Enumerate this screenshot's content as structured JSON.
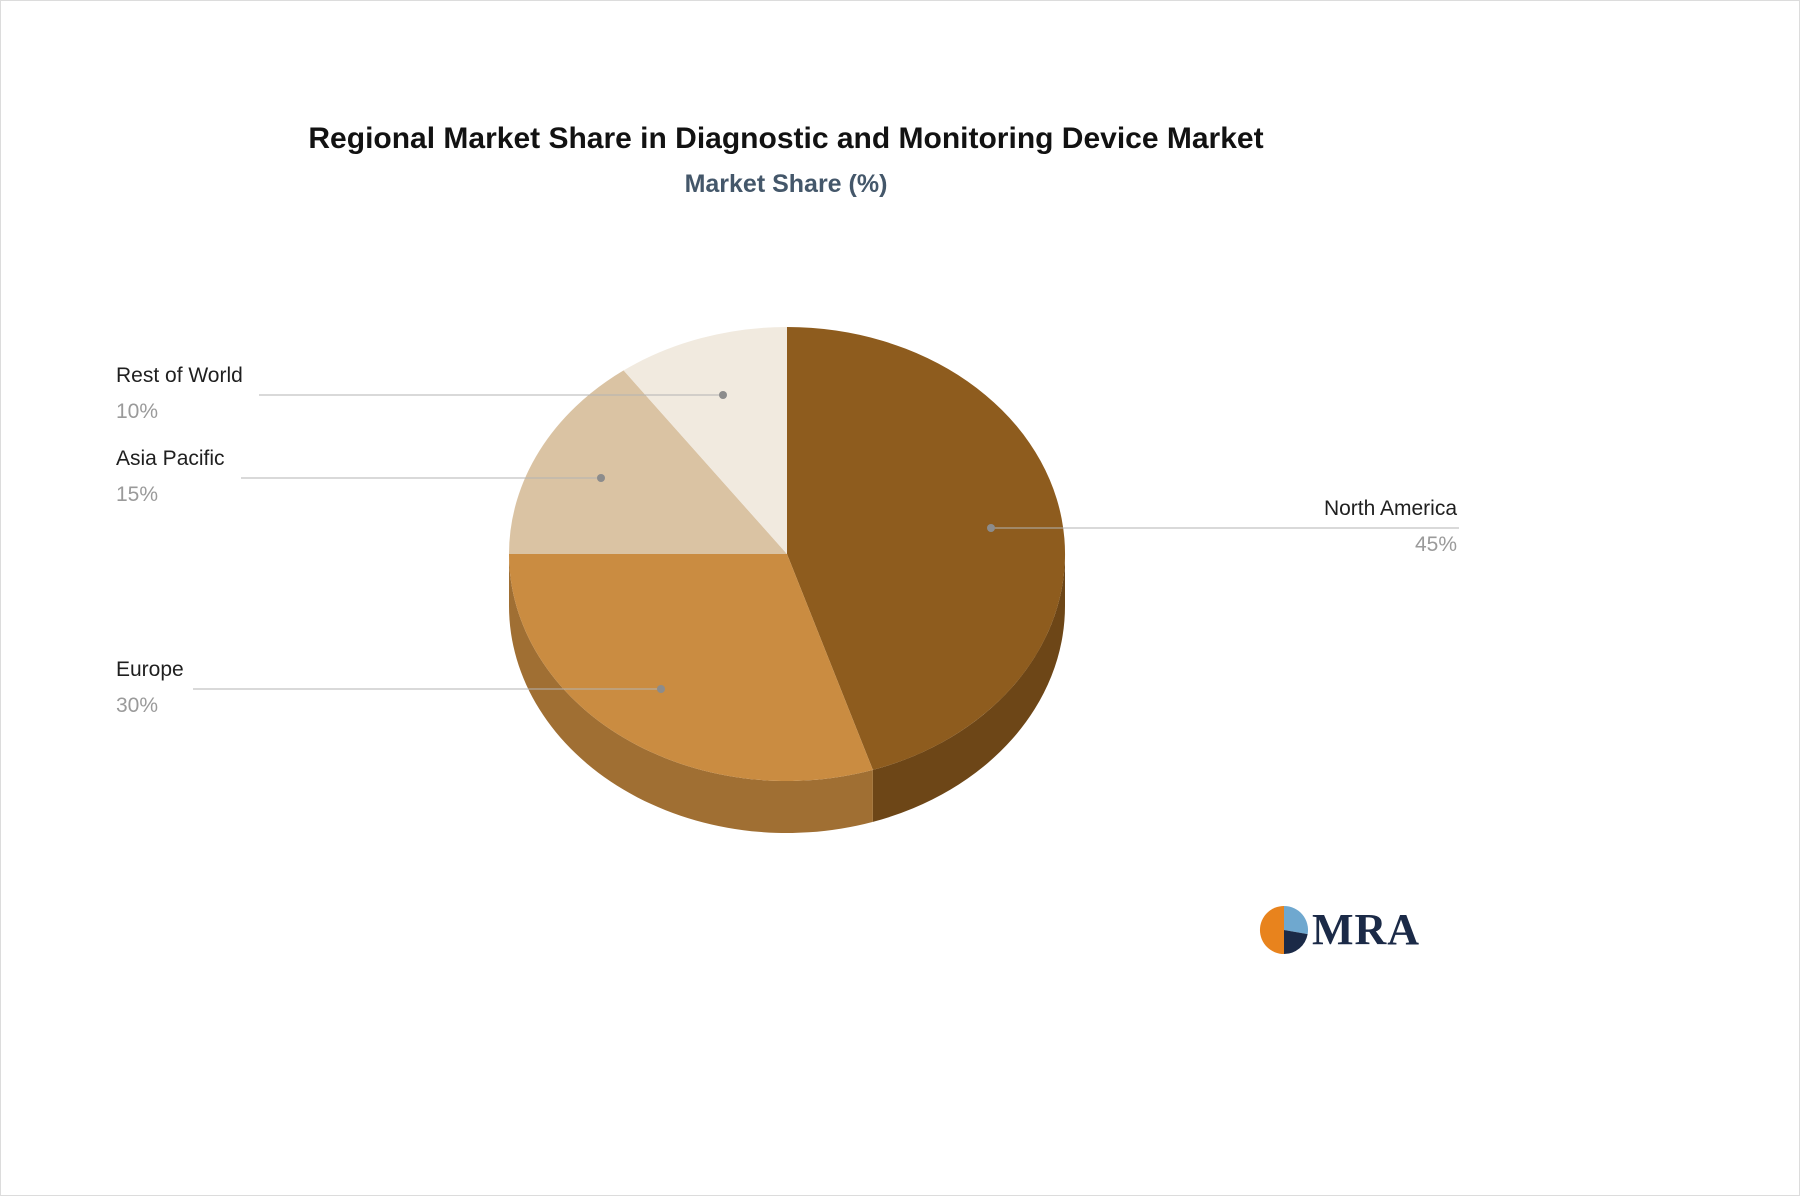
{
  "title": "Regional Market Share in Diagnostic and Monitoring Device Market",
  "subtitle": "Market Share (%)",
  "chart_data": {
    "type": "pie",
    "title": "Regional Market Share in Diagnostic and Monitoring Device Market",
    "subtitle": "Market Share (%)",
    "unit": "%",
    "style": "3d-pie",
    "legend_position": "none",
    "labels_on": true,
    "start_angle_deg": -90,
    "direction": "clockwise",
    "categories": [
      "North America",
      "Europe",
      "Asia Pacific",
      "Rest of World"
    ],
    "values": [
      45,
      30,
      15,
      10
    ],
    "slices": [
      {
        "label": "North America",
        "value": 45,
        "pct_label": "45%",
        "color": "#8e5c1e",
        "side_color": "#6d4617"
      },
      {
        "label": "Europe",
        "value": 30,
        "pct_label": "30%",
        "color": "#ca8c41",
        "side_color": "#a06f33"
      },
      {
        "label": "Asia Pacific",
        "value": 15,
        "pct_label": "15%",
        "color": "#dac3a3",
        "side_color": "#b5a186"
      },
      {
        "label": "Rest of World",
        "value": 10,
        "pct_label": "10%",
        "color": "#f1eadf",
        "side_color": "#cec4b5"
      }
    ],
    "callout_line_color": "#b3b3b3",
    "callout_dot_color": "#8c8c8c"
  },
  "logo": {
    "text": "MRA",
    "colors": {
      "orange": "#e8831d",
      "navy": "#1b2a47",
      "blue": "#6fa8cf"
    }
  }
}
